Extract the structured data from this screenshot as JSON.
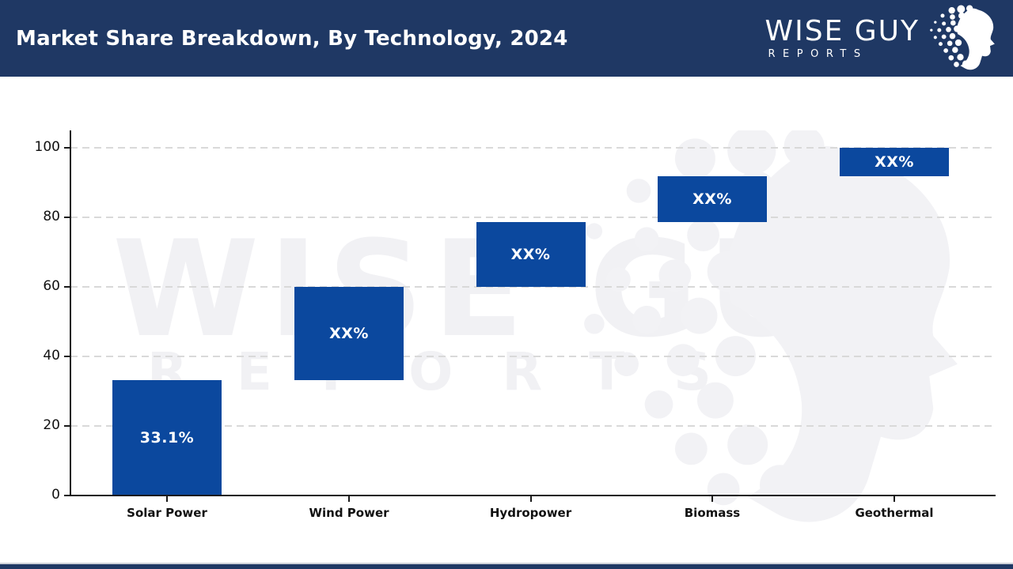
{
  "header": {
    "title": "Market Share Breakdown, By Technology, 2024",
    "background_color": "#1f3864",
    "logo": {
      "line1": "WISE GUY",
      "line2": "REPORTS"
    }
  },
  "watermark": {
    "line1": "WISE GUY",
    "line2": "REPORTS"
  },
  "chart_data": {
    "type": "bar",
    "variant": "waterfall",
    "title": "Market Share Breakdown, By Technology, 2024",
    "categories": [
      "Solar Power",
      "Wind Power",
      "Hydropower",
      "Biomass",
      "Geothermal"
    ],
    "series": [
      {
        "category": "Solar Power",
        "from": 0,
        "to": 33.1,
        "label": "33.1%"
      },
      {
        "category": "Wind Power",
        "from": 33.1,
        "to": 60.0,
        "label": "XX%"
      },
      {
        "category": "Hydropower",
        "from": 60.0,
        "to": 78.6,
        "label": "XX%"
      },
      {
        "category": "Biomass",
        "from": 78.7,
        "to": 91.8,
        "label": "XX%"
      },
      {
        "category": "Geothermal",
        "from": 91.8,
        "to": 100.0,
        "label": "XX%"
      }
    ],
    "ylabel": "",
    "xlabel": "",
    "yticks": [
      0,
      20,
      40,
      60,
      80,
      100
    ],
    "ylim": [
      0,
      105
    ],
    "grid": "horizontal-dashed",
    "legend": "none",
    "bar_color": "#0b489e",
    "bar_label_color": "#ffffff",
    "axis_color": "#1a1a1a",
    "gridline_color": "#d9d9d9"
  }
}
